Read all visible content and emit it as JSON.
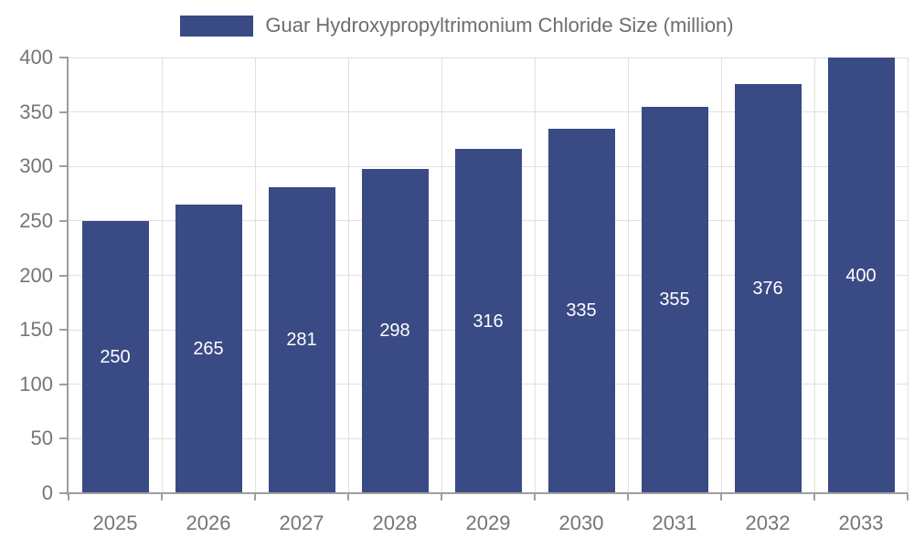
{
  "legend": {
    "position": "top",
    "items": [
      {
        "label": "Guar Hydroxypropyltrimonium Chloride Size (million)",
        "color": "#3a4a85"
      }
    ]
  },
  "chart_data": {
    "type": "bar",
    "title": "Guar Hydroxypropyltrimonium Chloride Size (million)",
    "categories": [
      "2025",
      "2026",
      "2027",
      "2028",
      "2029",
      "2030",
      "2031",
      "2032",
      "2033"
    ],
    "values": [
      250,
      265,
      281,
      298,
      316,
      335,
      355,
      376,
      400
    ],
    "xlabel": "",
    "ylabel": "",
    "ylim": [
      0,
      400
    ],
    "ytick_step": 50,
    "yticks": [
      0,
      50,
      100,
      150,
      200,
      250,
      300,
      350,
      400
    ],
    "grid": true,
    "legend_position": "top",
    "value_labels": "inside-center",
    "colors": {
      "bar": "#3a4a85",
      "value_label": "#ffffff",
      "axis_line": "#9e9e9e",
      "grid_line": "#e0e0e0",
      "tick_label": "#757575",
      "legend_text": "#6e6e6e",
      "background": "#ffffff"
    }
  }
}
